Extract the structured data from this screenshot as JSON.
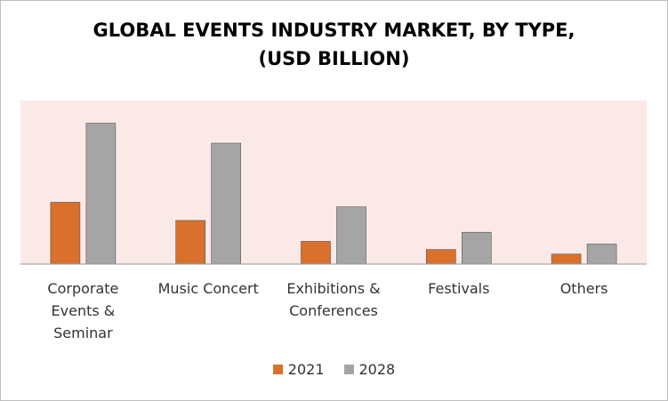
{
  "chart_data": {
    "type": "bar",
    "title_lines": [
      "GLOBAL EVENTS INDUSTRY MARKET, BY TYPE,",
      "(USD BILLION)"
    ],
    "categories": [
      [
        "Corporate",
        "Events &",
        "Seminar"
      ],
      [
        "Music Concert"
      ],
      [
        "Exhibitions &",
        "Conferences"
      ],
      [
        "Festivals"
      ],
      [
        "Others"
      ]
    ],
    "series": [
      {
        "name": "2021",
        "color": "#d9702b",
        "values": [
          68,
          48,
          25,
          16,
          11
        ]
      },
      {
        "name": "2028",
        "color": "#a5a5a5",
        "values": [
          155,
          133,
          63,
          35,
          22
        ]
      }
    ],
    "ylim": [
      0,
      180
    ],
    "grid": false,
    "legend_position": "bottom",
    "plot_background": "#fbe9e7"
  }
}
